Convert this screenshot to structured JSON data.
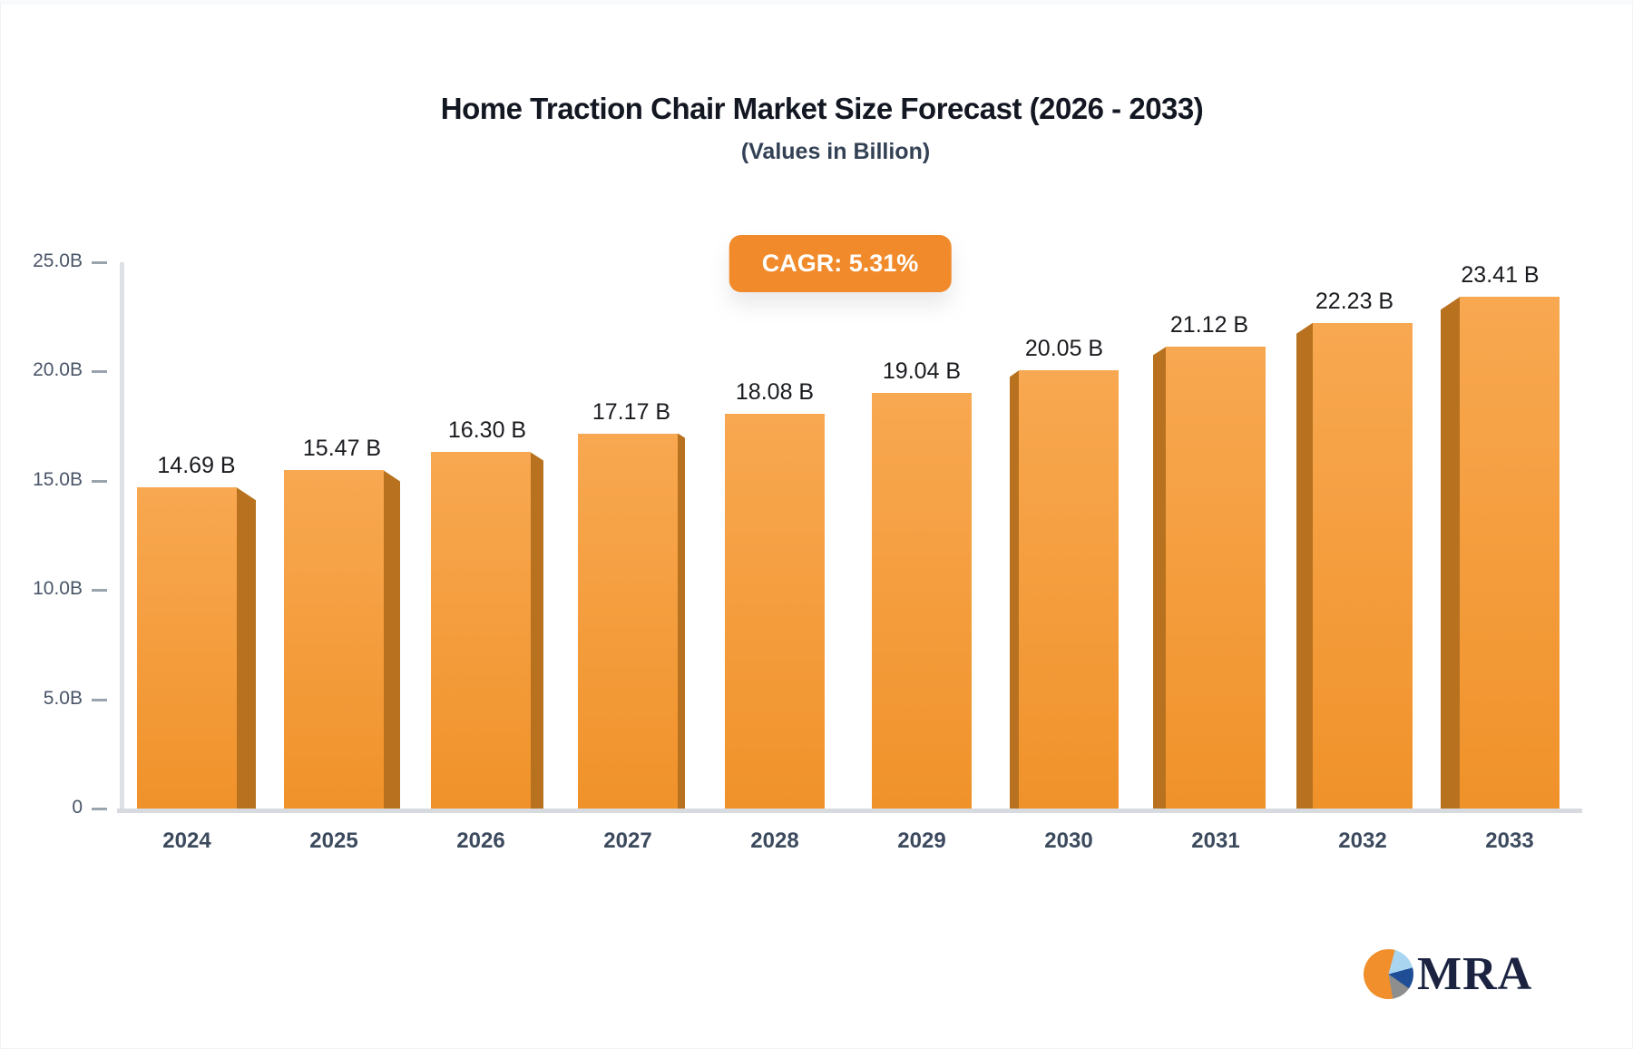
{
  "header": {
    "title": "Home Traction Chair Market Size Forecast (2026 - 2033)",
    "subtitle": "(Values in Billion)",
    "cagr_badge": "CAGR: 5.31%"
  },
  "chart_data": {
    "type": "bar",
    "title": "Home Traction Chair Market Size Forecast (2026 - 2033)",
    "subtitle": "(Values in Billion)",
    "categories": [
      "2024",
      "2025",
      "2026",
      "2027",
      "2028",
      "2029",
      "2030",
      "2031",
      "2032",
      "2033"
    ],
    "values": [
      14.69,
      15.47,
      16.3,
      17.17,
      18.08,
      19.04,
      20.05,
      21.12,
      22.23,
      23.41
    ],
    "value_labels": [
      "14.69 B",
      "15.47 B",
      "16.30 B",
      "17.17 B",
      "18.08 B",
      "19.04 B",
      "20.05 B",
      "21.12 B",
      "22.23 B",
      "23.41 B"
    ],
    "cagr": "CAGR: 5.31%",
    "xlabel": "",
    "ylabel": "",
    "ylim": [
      0,
      25
    ],
    "y_ticks": [
      {
        "value": 0,
        "label": "0"
      },
      {
        "value": 5,
        "label": "5.0B"
      },
      {
        "value": 10,
        "label": "10.0B"
      },
      {
        "value": 15,
        "label": "15.0B"
      },
      {
        "value": 20,
        "label": "20.0B"
      },
      {
        "value": 25,
        "label": "25.0B"
      }
    ],
    "grid": false,
    "legend": "none",
    "bar_style": "3d-perspective"
  },
  "colors": {
    "bar_top": "#F8A851",
    "bar_bottom": "#F0922A",
    "bar_side": "#B8721F",
    "badge_bg": "#F18A2B",
    "badge_text": "#FFFFFF",
    "title_text": "#131722",
    "subtitle_text": "#334155",
    "axis_line": "#D7DBE0",
    "tick_text": "#4A5568",
    "x_label_text": "#3C4A5E",
    "value_label_text": "#191B1F"
  },
  "logo": {
    "text": "MRA",
    "pie_orange": "#F08F2B",
    "pie_lightblue": "#A9D5F0",
    "pie_navy": "#1F4E96",
    "pie_gray": "#8E8E8E",
    "text_color": "#1B2340"
  }
}
